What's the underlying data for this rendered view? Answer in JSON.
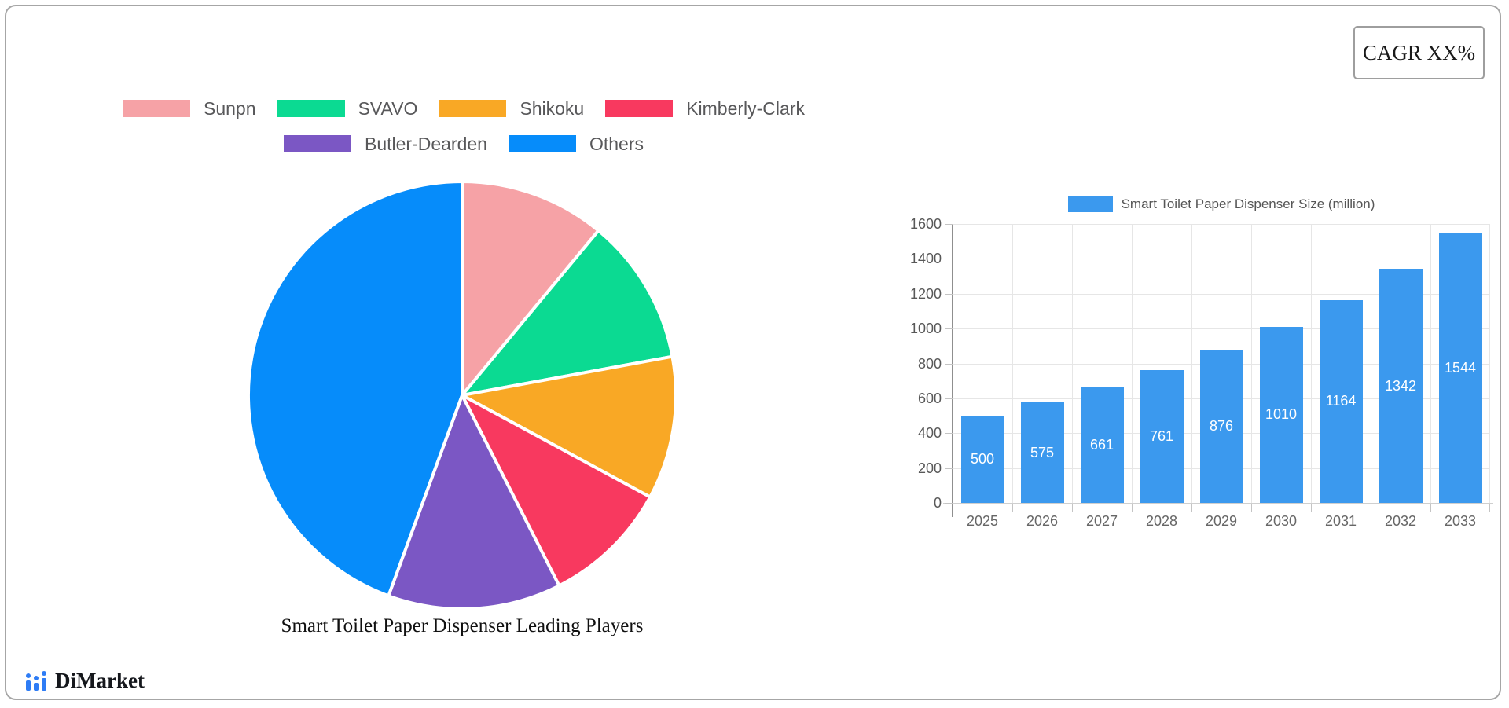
{
  "cagr": {
    "label": "CAGR XX%"
  },
  "brand": {
    "logo_icon": "bar-chart-logo-icon",
    "name": "DiMarket"
  },
  "chart_data": [
    {
      "type": "pie",
      "title": "Smart Toilet Paper Dispenser Leading Players",
      "labels": [
        "Sunpn",
        "SVAVO",
        "Shikoku",
        "Kimberly-Clark",
        "Butler-Dearden",
        "Others"
      ],
      "values_percent": [
        11.0,
        11.1,
        10.8,
        9.6,
        13.1,
        44.4
      ],
      "colors": [
        "#f6a2a6",
        "#0bda92",
        "#f9a825",
        "#f8395f",
        "#7b57c4",
        "#068cfa"
      ],
      "start_angle_deg": 0,
      "direction": "clockwise",
      "legend_position": "top",
      "legend_rows": [
        [
          "Sunpn",
          "SVAVO",
          "Shikoku",
          "Kimberly-Clark"
        ],
        [
          "Butler-Dearden",
          "Others"
        ]
      ],
      "slice_border_color": "#ffffff"
    },
    {
      "type": "bar",
      "legend": "Smart Toilet Paper Dispenser Size (million)",
      "categories": [
        "2025",
        "2026",
        "2027",
        "2028",
        "2029",
        "2030",
        "2031",
        "2032",
        "2033"
      ],
      "values": [
        500,
        575,
        661,
        761,
        876,
        1010,
        1164,
        1342,
        1544
      ],
      "bar_color": "#3b99ee",
      "value_label_color": "#ffffff",
      "ylabel": "",
      "xlabel": "",
      "ylim": [
        0,
        1600
      ],
      "ytick_step": 200,
      "grid": true,
      "legend_position": "top"
    }
  ]
}
